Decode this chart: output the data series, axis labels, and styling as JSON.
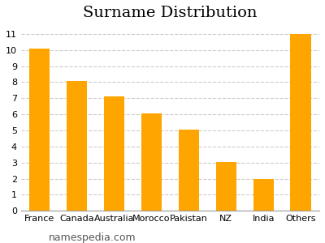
{
  "title": "Surname Distribution",
  "categories": [
    "France",
    "Canada",
    "Australia",
    "Morocco",
    "Pakistan",
    "NZ",
    "India",
    "Others"
  ],
  "values": [
    10.1,
    8.1,
    7.1,
    6.05,
    5.05,
    3.05,
    2.0,
    11.0
  ],
  "bar_color": "#FFA500",
  "ylim": [
    0,
    11.5
  ],
  "yticks": [
    0,
    1,
    2,
    3,
    4,
    5,
    6,
    7,
    8,
    9,
    10,
    11
  ],
  "grid_color": "#cccccc",
  "background_color": "#ffffff",
  "title_fontsize": 14,
  "tick_fontsize": 8,
  "bar_width": 0.55,
  "watermark": "namespedia.com",
  "watermark_fontsize": 9
}
